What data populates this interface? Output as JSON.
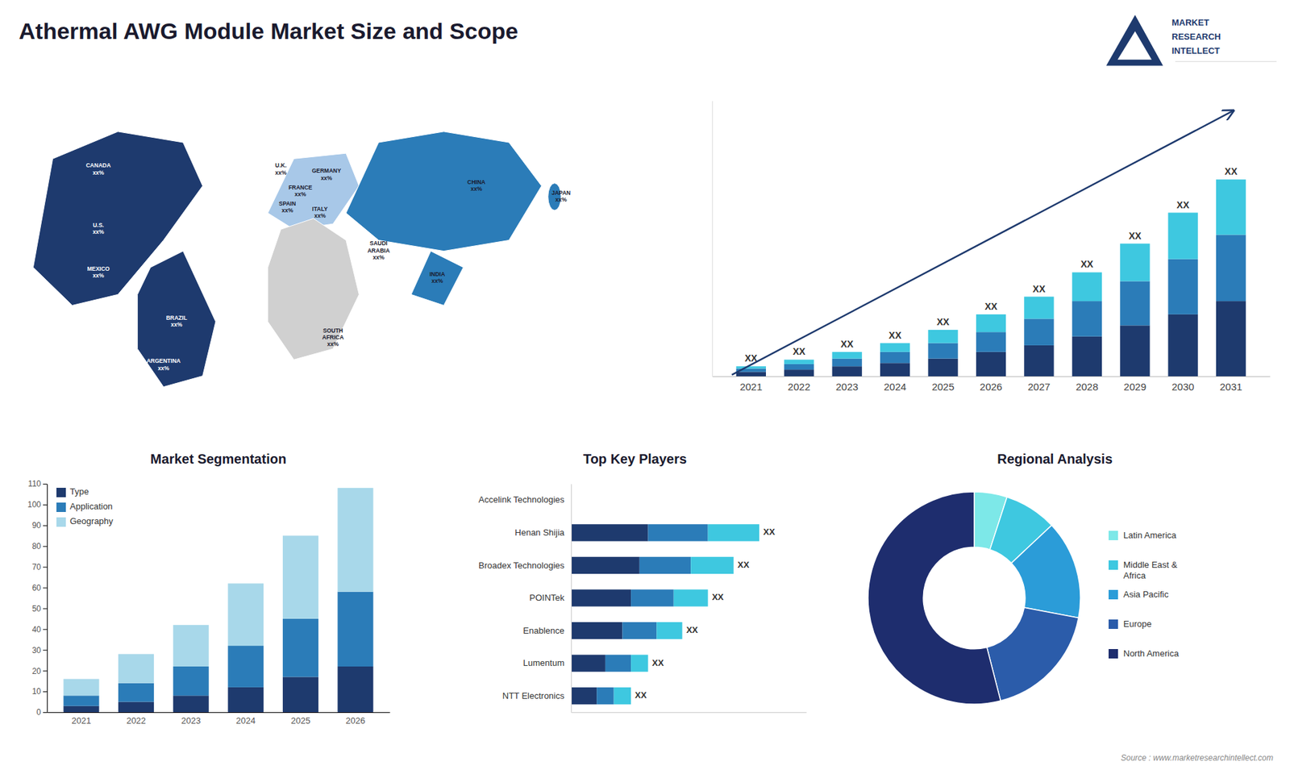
{
  "title": "Athermal AWG Module Market Size and Scope",
  "annotations": [
    "Source : www.marketresearchintellect.com",
    "MARKET",
    "RESEARCH",
    "INTELLECT"
  ],
  "chart_data": [
    {
      "type": "map",
      "colors": [
        "#1e3a6e",
        "#1e3a6e",
        "#a8c8e8",
        "#d0d0d0",
        "#2b7cb8",
        "#2b7cb8",
        "#2b7cb8"
      ],
      "annotations": [
        "CANADA\nxx%",
        "U.S.\nxx%",
        "MEXICO\nxx%",
        "BRAZIL\nxx%",
        "ARGENTINA\nxx%",
        "U.K.\nxx%",
        "FRANCE\nxx%",
        "GERMANY\nxx%",
        "SPAIN\nxx%",
        "ITALY\nxx%",
        "CHINA\nxx%",
        "INDIA\nxx%",
        "JAPAN\nxx%",
        "SAUDI\nARABIA\nxx%",
        "SOUTH\nAFRICA\nxx%"
      ]
    },
    {
      "type": "bar",
      "stacked": true,
      "categories": [
        "2021",
        "2022",
        "2023",
        "2024",
        "2025",
        "2026",
        "2027",
        "2028",
        "2029",
        "2030",
        "2031"
      ],
      "series": [
        {
          "color": "#1e3a6e",
          "values": [
            2,
            3,
            4.5,
            6,
            8,
            11,
            14,
            18,
            23,
            28,
            34
          ]
        },
        {
          "color": "#2b7cb8",
          "values": [
            1.5,
            2.5,
            3.5,
            5,
            7,
            9,
            12,
            16,
            20,
            25,
            30
          ]
        },
        {
          "color": "#3ec8e0",
          "values": [
            1,
            2,
            3,
            4,
            6,
            8,
            10,
            13,
            17,
            21,
            25
          ]
        }
      ],
      "ylim": [
        0,
        124.6
      ],
      "tick_labels": "x",
      "annotations": [
        "XX",
        "XX",
        "XX",
        "XX",
        "XX",
        "XX",
        "XX",
        "XX",
        "XX",
        "XX",
        "XX"
      ]
    },
    {
      "type": "bar",
      "title": "Market Segmentation",
      "stacked": true,
      "categories": [
        "2021",
        "2022",
        "2023",
        "2024",
        "2025",
        "2026"
      ],
      "series": [
        {
          "name": "Type",
          "color": "#1e3a6e",
          "values": [
            3,
            5,
            8,
            12,
            17,
            22
          ]
        },
        {
          "name": "Application",
          "color": "#2b7cb8",
          "values": [
            5,
            9,
            14,
            20,
            28,
            36
          ]
        },
        {
          "name": "Geography",
          "color": "#a8d8ea",
          "values": [
            8,
            14,
            20,
            30,
            40,
            50
          ]
        }
      ],
      "ylim": [
        0,
        110
      ],
      "yticks": [
        0,
        10,
        20,
        30,
        40,
        50,
        60,
        70,
        80,
        90,
        100,
        110
      ],
      "legend": "upper left"
    },
    {
      "type": "bar",
      "title": "Top Key Players",
      "orientation": "horizontal",
      "stacked": true,
      "categories": [
        "Accelink Technologies",
        "Henan Shijia",
        "Broadex Technologies",
        "POINTek",
        "Enablence",
        "Lumentum",
        "NTT Electronics"
      ],
      "series": [
        {
          "color": "#1e3a6e",
          "values": [
            0,
            9,
            8,
            7,
            6,
            4,
            3
          ]
        },
        {
          "color": "#2b7cb8",
          "values": [
            0,
            7,
            6,
            5,
            4,
            3,
            2
          ]
        },
        {
          "color": "#3ec8e0",
          "values": [
            0,
            6,
            5,
            4,
            3,
            2,
            2
          ]
        }
      ],
      "xlim": [
        0,
        27.5
      ],
      "tick_labels": "y",
      "annotations": [
        "XX",
        "XX",
        "XX",
        "XX",
        "XX",
        "XX"
      ]
    },
    {
      "type": "pie",
      "title": "Regional Analysis",
      "categories": [
        "Latin America",
        "Middle East &\nAfrica",
        "Asia Pacific",
        "Europe",
        "North America"
      ],
      "values": [
        5,
        8,
        15,
        18,
        54
      ],
      "colors": [
        "#7de8e8",
        "#3ec8e0",
        "#2b9cd8",
        "#2b5caa",
        "#1e2d6e"
      ],
      "legend": "right"
    }
  ]
}
